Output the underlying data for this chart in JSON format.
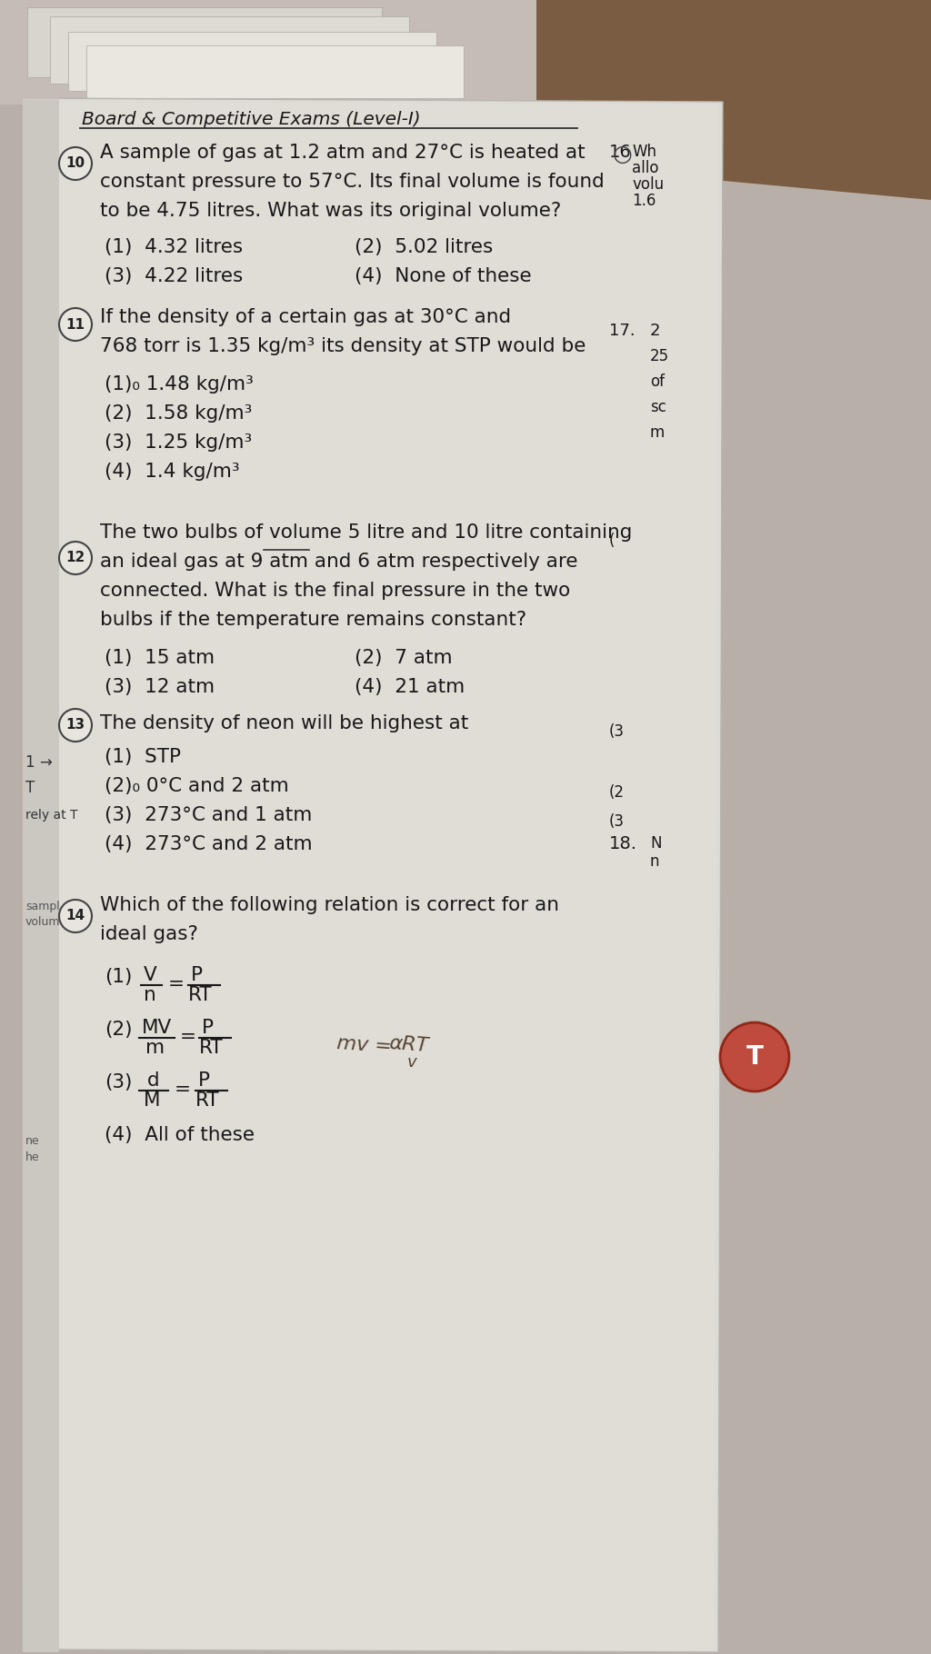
{
  "bg_outer": "#b8b0a8",
  "bg_paper": "#dddad4",
  "bg_paper2": "#e2dfd8",
  "bg_top_brown": "#7a5c42",
  "title": "Board & Competitive Exams (Level-I)",
  "text_color": "#1a1818",
  "q10_text": [
    "A sample of gas at 1.2 atm and 27°C is heated at",
    "constant pressure to 57°C. Its final volume is found",
    "to be 4.75 litres. What was its original volume?"
  ],
  "q10_opts": [
    "(1)  4.32 litres",
    "(2)  5.02 litres",
    "(3)  4.22 litres",
    "(4)  None of these"
  ],
  "q11_text": [
    "If the density of a certain gas at 30°C and",
    "768 torr is 1.35 kg/m³ its density at STP would be"
  ],
  "q11_opts": [
    "(1)₀ 1.48 kg/m³",
    "(2)  1.58 kg/m³",
    "(3)  1.25 kg/m³",
    "(4)  1.4 kg/m³"
  ],
  "q12_text": [
    "The two bulbs of volume 5 litre and 10 litre containing",
    "an ideal gas at 9 atm and 6 atm respectively are",
    "connected. What is the final pressure in the two",
    "bulbs if the temperature remains constant?"
  ],
  "q12_opts": [
    "(1)  15 atm",
    "(2)  7 atm",
    "(3)  12 atm",
    "(4)  21 atm"
  ],
  "q13_text": [
    "The density of neon will be highest at"
  ],
  "q13_opts": [
    "(1)  STP",
    "(2)₀ 0°C and 2 atm",
    "(3)  273°C and 1 atm",
    "(4)  273°C and 2 atm"
  ],
  "q14_text": [
    "Which of the following relation is correct for an",
    "ideal gas?"
  ],
  "right16": [
    "16",
    "Wh",
    "allo",
    "volu",
    "1.6"
  ],
  "right17": [
    "17.",
    "2",
    "25",
    "of",
    "sc",
    "m"
  ],
  "right_partial": [
    "(",
    "(3",
    "(2",
    "(3"
  ],
  "right18": [
    "18.",
    "N",
    "n"
  ],
  "left_small": [
    "1 →",
    "T",
    "rely at T"
  ],
  "left_sample": [
    "sampl",
    "volum"
  ],
  "left_he": [
    "ne",
    "he"
  ],
  "annot_mv": "mv ="
}
